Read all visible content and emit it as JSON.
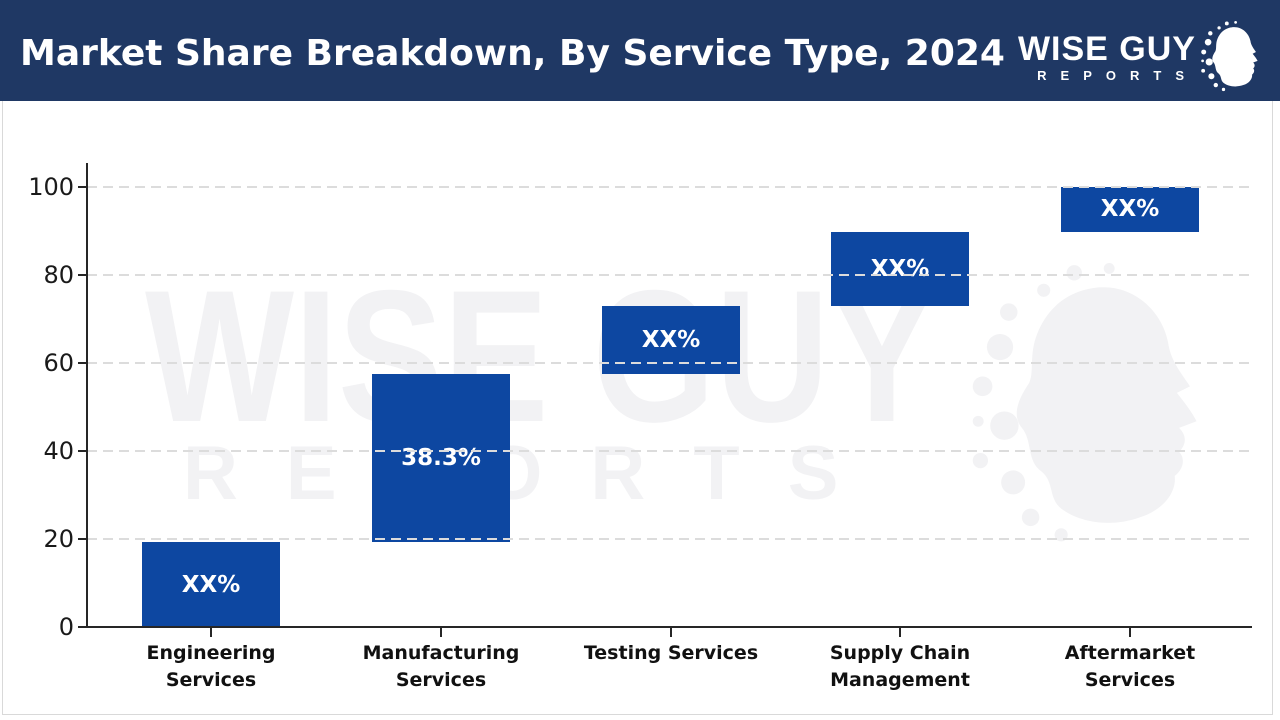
{
  "header": {
    "title": "Market Share Breakdown, By Service Type, 2024",
    "background_color": "#1f3864",
    "logo": {
      "brand_line1": "WISE GUY",
      "brand_line2": "REPORTS",
      "icon": "dotted-head-profile-icon"
    }
  },
  "watermark": {
    "line1": "WISE GUY",
    "line2": "REPORTS",
    "icon": "dotted-head-profile-icon"
  },
  "chart_data": {
    "type": "bar",
    "subtype": "waterfall",
    "title": "Market Share Breakdown, By Service Type, 2024",
    "categories": [
      "Engineering\nServices",
      "Manufacturing\nServices",
      "Testing Services",
      "Supply Chain\nManagement",
      "Aftermarket\nServices"
    ],
    "bars": [
      {
        "category": "Engineering Services",
        "start": 0,
        "end": 19.3,
        "label": "XX%"
      },
      {
        "category": "Manufacturing Services",
        "start": 19.3,
        "end": 57.6,
        "label": "38.3%"
      },
      {
        "category": "Testing Services",
        "start": 57.6,
        "end": 72.9,
        "label": "XX%"
      },
      {
        "category": "Supply Chain Management",
        "start": 72.9,
        "end": 89.8,
        "label": "XX%"
      },
      {
        "category": "Aftermarket Services",
        "start": 89.8,
        "end": 100,
        "label": "XX%"
      }
    ],
    "y_ticks": [
      0,
      20,
      40,
      60,
      80,
      100
    ],
    "ylim": [
      0,
      105.5
    ],
    "xlabel": "",
    "ylabel": "",
    "grid": "horizontal-dashed",
    "legend": "none",
    "bar_color": "#0d47a1",
    "bar_label_color": "#ffffff",
    "axis_color": "#262626"
  }
}
